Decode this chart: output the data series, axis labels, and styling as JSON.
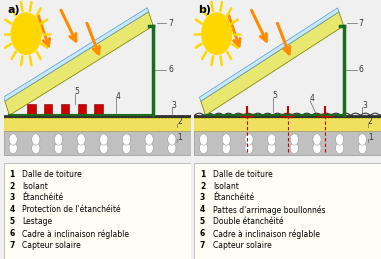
{
  "title_a": "a)",
  "title_b": "b)",
  "bg_outer": "#f0f0f0",
  "bg_color": "#FFFEF5",
  "legend_a": [
    "1 Dalle de toiture",
    "2 Isolant",
    "3 Étanchéité",
    "4 Protection de l'étanchéité",
    "5 Lestage",
    "6 Cadre à inclinaison réglable",
    "7 Capteur solaire"
  ],
  "legend_b": [
    "1 Dalle de toiture",
    "2 Isolant",
    "3 Étanchéité",
    "4 Pattes d'arrimage boullonnés",
    "5 Double étanchéité",
    "6 Cadre à inclinaison réglable",
    "7 Capteur solaire"
  ],
  "concrete_color": "#c0c0c0",
  "insulation_color": "#f0e060",
  "waterproof_color": "#404040",
  "frame_color": "#1a6b1a",
  "sun_body_color": "#FFD700",
  "arrow_color": "#FF8C00",
  "red_color": "#cc0000",
  "panel_yellow": "#e8e870",
  "panel_blue": "#aaddff",
  "label_line_color": "#666666"
}
